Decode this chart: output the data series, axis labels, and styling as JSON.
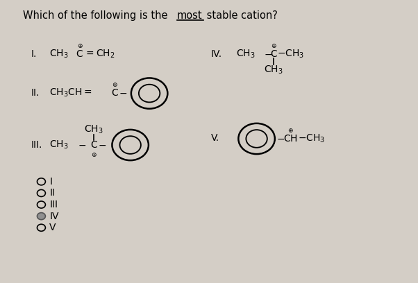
{
  "title_part1": "Which of the following is the  ",
  "title_underlined": "most",
  "title_part2": " stable cation?",
  "bg_color": "#d4cec6",
  "text_color": "#000000",
  "options": [
    "I",
    "II",
    "III",
    "IV",
    "V"
  ],
  "figsize": [
    6.02,
    4.08
  ],
  "dpi": 100
}
